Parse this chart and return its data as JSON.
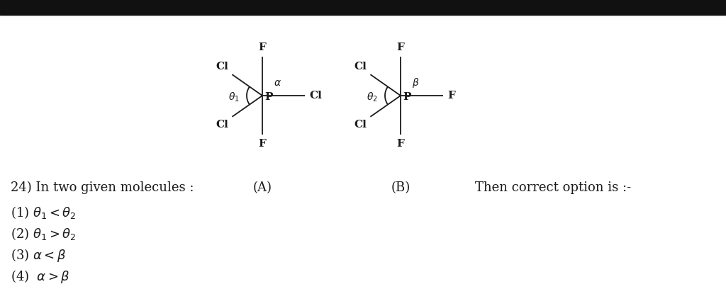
{
  "bg_color": "#ffffff",
  "title_bar_color": "#111111",
  "text_color": "#1a1a1a",
  "fig_width": 10.24,
  "fig_height": 4.32,
  "top_bar_height": 0.048,
  "question_text": "24) In two given molecules :",
  "label_A": "(A)",
  "label_B": "(B)",
  "suffix_text": "Then correct option is :-"
}
